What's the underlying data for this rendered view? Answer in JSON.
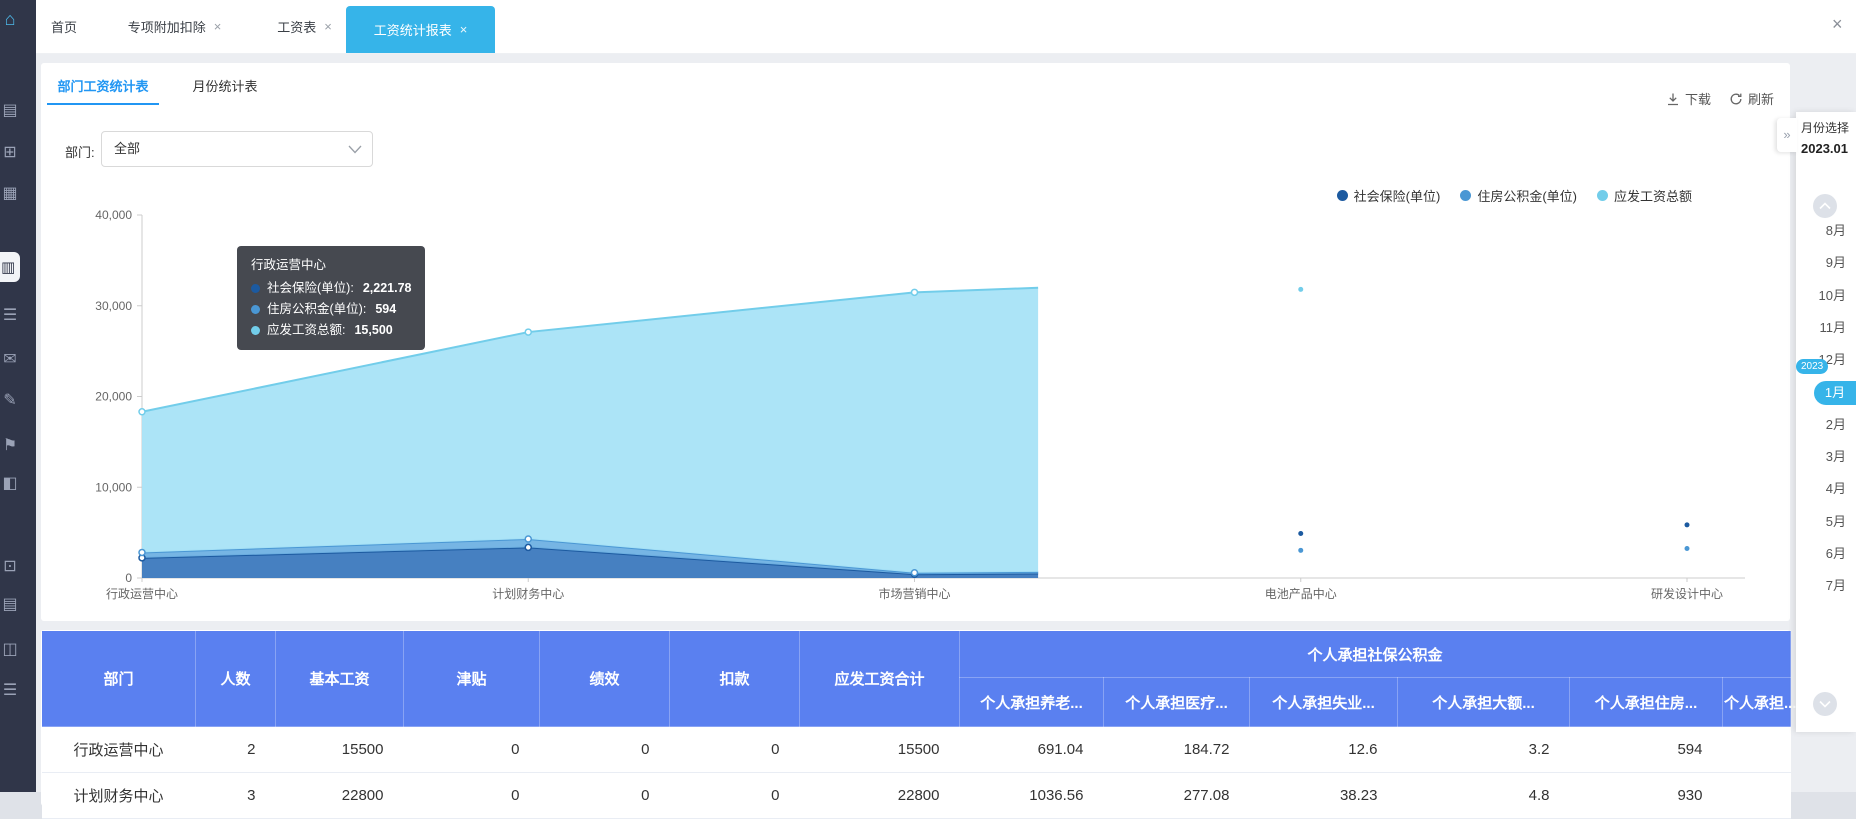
{
  "tabbar": {
    "close_icon": "×",
    "tabs": [
      {
        "label": "首页",
        "closable": false,
        "active": false
      },
      {
        "label": "专项附加扣除",
        "closable": true,
        "active": false
      },
      {
        "label": "工资表",
        "closable": true,
        "active": false
      },
      {
        "label": "工资统计报表",
        "closable": true,
        "active": true
      }
    ]
  },
  "subtabs": [
    {
      "label": "部门工资统计表",
      "active": true
    },
    {
      "label": "月份统计表",
      "active": false
    }
  ],
  "toolbar": {
    "download": "下载",
    "refresh": "刷新"
  },
  "filter": {
    "label": "部门:",
    "value": "全部"
  },
  "sidebar": {
    "icons": [
      {
        "name": "logo-icon",
        "glyph": "⌂"
      },
      {
        "name": "dashboard-icon",
        "glyph": "▤"
      },
      {
        "name": "voucher-icon",
        "glyph": "⊞"
      },
      {
        "name": "ledger-icon",
        "glyph": "▦"
      },
      {
        "name": "salary-icon",
        "glyph": "▥"
      },
      {
        "name": "report-icon",
        "glyph": "☰"
      },
      {
        "name": "invoice-icon",
        "glyph": "✉"
      },
      {
        "name": "entry-icon",
        "glyph": "✎"
      },
      {
        "name": "assets-icon",
        "glyph": "⚑"
      },
      {
        "name": "checkout-icon",
        "glyph": "◧"
      },
      {
        "name": "settings-icon",
        "glyph": "⊡"
      },
      {
        "name": "files-icon",
        "glyph": "▤"
      },
      {
        "name": "stats-icon",
        "glyph": "◫"
      },
      {
        "name": "more-icon",
        "glyph": "☰"
      }
    ],
    "active_index": 4
  },
  "chart_data": {
    "type": "area",
    "stacked": true,
    "title": "",
    "categories": [
      "行政运营中心",
      "计划财务中心",
      "市场营销中心",
      "电池产品中心",
      "研发设计中心"
    ],
    "ylim": [
      0,
      40000
    ],
    "ytick_labels": [
      "0",
      "10,000",
      "20,000",
      "30,000",
      "40,000"
    ],
    "grid": false,
    "legend_position": "top-right",
    "series": [
      {
        "name": "社会保险(单位)",
        "color": "#1c5aa0",
        "fill": "#3c79be",
        "values": [
          2221.78,
          3370,
          420
        ],
        "edge_value": 500
      },
      {
        "name": "住房公积金(单位)",
        "color": "#4a97d4",
        "fill": "#6fb1e3",
        "values": [
          594,
          930,
          160
        ],
        "edge_value": 180
      },
      {
        "name": "应发工资总额",
        "color": "#72cdea",
        "fill": "#a8e3f7",
        "values": [
          15500,
          22800,
          30900
        ],
        "edge_value": 31300
      }
    ],
    "fill_cut_fraction": 2.32,
    "scatter": [
      {
        "x": 3,
        "value": 31800,
        "series": 2
      },
      {
        "x": 3,
        "value": 4900,
        "series": 0
      },
      {
        "x": 3,
        "value": 3050,
        "series": 1
      },
      {
        "x": 4,
        "value": 5850,
        "series": 0
      },
      {
        "x": 4,
        "value": 3250,
        "series": 1
      }
    ],
    "note": "area fill is partially drawn: it ends with a vertical cut shortly after 市场营销中心"
  },
  "tooltip": {
    "title": "行政运营中心",
    "rows": [
      {
        "label": "社会保险(单位)",
        "value": "2,221.78",
        "color": "#1c5aa0"
      },
      {
        "label": "住房公积金(单位)",
        "value": "594",
        "color": "#4a97d4"
      },
      {
        "label": "应发工资总额",
        "value": "15,500",
        "color": "#72cdea"
      }
    ]
  },
  "month_panel": {
    "collapse_icon": "»",
    "header_line1": "月份选择",
    "header_line2": "2023.01",
    "months": [
      "8月",
      "9月",
      "10月",
      "11月",
      "12月",
      "1月",
      "2月",
      "3月",
      "4月",
      "5月",
      "6月",
      "7月"
    ],
    "active_index": 5,
    "active_badge": "2023"
  },
  "table": {
    "columns": [
      "部门",
      "人数",
      "基本工资",
      "津贴",
      "绩效",
      "扣款",
      "应发工资合计"
    ],
    "group_header": "个人承担社保公积金",
    "sub_columns": [
      "个人承担养老...",
      "个人承担医疗...",
      "个人承担失业...",
      "个人承担大额...",
      "个人承担住房...",
      "个人承担..."
    ],
    "rows": [
      [
        "行政运营中心",
        "2",
        "15500",
        "0",
        "0",
        "0",
        "15500",
        "691.04",
        "184.72",
        "12.6",
        "3.2",
        "594",
        ""
      ],
      [
        "计划财务中心",
        "3",
        "22800",
        "0",
        "0",
        "0",
        "22800",
        "1036.56",
        "277.08",
        "38.23",
        "4.8",
        "930",
        ""
      ]
    ]
  }
}
